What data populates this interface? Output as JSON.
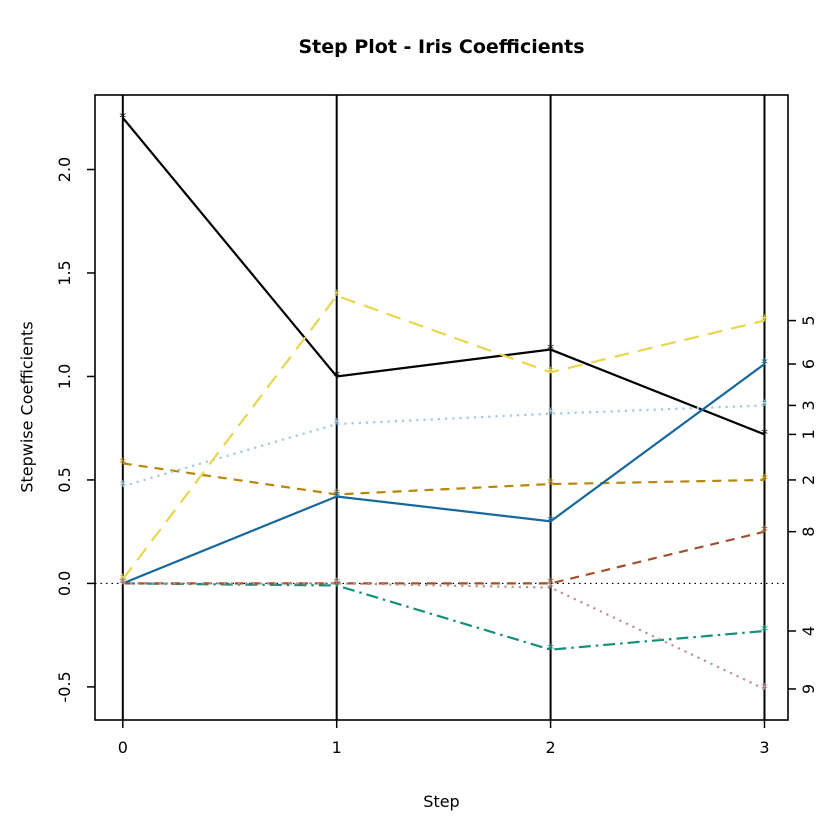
{
  "chart_data": {
    "type": "line",
    "title": "Step Plot - Iris Coefficients",
    "xlabel": "Step",
    "ylabel": "Stepwise Coefficients",
    "marker": "*",
    "grid": false,
    "x": [
      0,
      1,
      2,
      3
    ],
    "xlim": [
      -0.13,
      3.11
    ],
    "ylim": [
      -0.66,
      2.36
    ],
    "x_ticks": [
      {
        "label": "0",
        "value": 0
      },
      {
        "label": "1",
        "value": 1
      },
      {
        "label": "2",
        "value": 2
      },
      {
        "label": "3",
        "value": 3
      }
    ],
    "y_ticks": [
      {
        "label": "-0.5",
        "value": -0.5
      },
      {
        "label": "0.0",
        "value": 0.0
      },
      {
        "label": "0.5",
        "value": 0.5
      },
      {
        "label": "1.0",
        "value": 1.0
      },
      {
        "label": "1.5",
        "value": 1.5
      },
      {
        "label": "2.0",
        "value": 2.0
      }
    ],
    "vertical_lines": [
      0,
      1,
      2,
      3
    ],
    "zero_line": 0.0,
    "series": [
      {
        "name": "1",
        "color": "#000000",
        "style": "solid",
        "values": [
          2.25,
          1.0,
          1.13,
          0.72
        ]
      },
      {
        "name": "2",
        "color": "#b8860b",
        "style": "dashed",
        "values": [
          0.58,
          0.43,
          0.48,
          0.5
        ]
      },
      {
        "name": "3",
        "color": "#9ecae1",
        "style": "dotted",
        "values": [
          0.47,
          0.77,
          0.82,
          0.86
        ]
      },
      {
        "name": "4",
        "color": "#13907c",
        "style": "dashdot",
        "values": [
          0.0,
          -0.01,
          -0.32,
          -0.23
        ]
      },
      {
        "name": "5",
        "color": "#e9d64f",
        "style": "longdash",
        "values": [
          0.02,
          1.39,
          1.02,
          1.27
        ]
      },
      {
        "name": "6",
        "color": "#17689c",
        "style": "solid",
        "values": [
          0.0,
          0.42,
          0.3,
          1.06
        ]
      },
      {
        "name": "8",
        "color": "#a0522d",
        "style": "dashed",
        "values": [
          0.0,
          0.0,
          0.0,
          0.25
        ]
      },
      {
        "name": "9",
        "color": "#bc8f8f",
        "style": "dotted",
        "values": [
          0.0,
          0.0,
          -0.02,
          -0.51
        ]
      }
    ],
    "right_axis_labels": [
      {
        "label": "5",
        "value": 1.27
      },
      {
        "label": "6",
        "value": 1.06
      },
      {
        "label": "3",
        "value": 0.86
      },
      {
        "label": "1",
        "value": 0.72
      },
      {
        "label": "2",
        "value": 0.5
      },
      {
        "label": "8",
        "value": 0.25
      },
      {
        "label": "4",
        "value": -0.23
      },
      {
        "label": "9",
        "value": -0.51
      }
    ]
  }
}
